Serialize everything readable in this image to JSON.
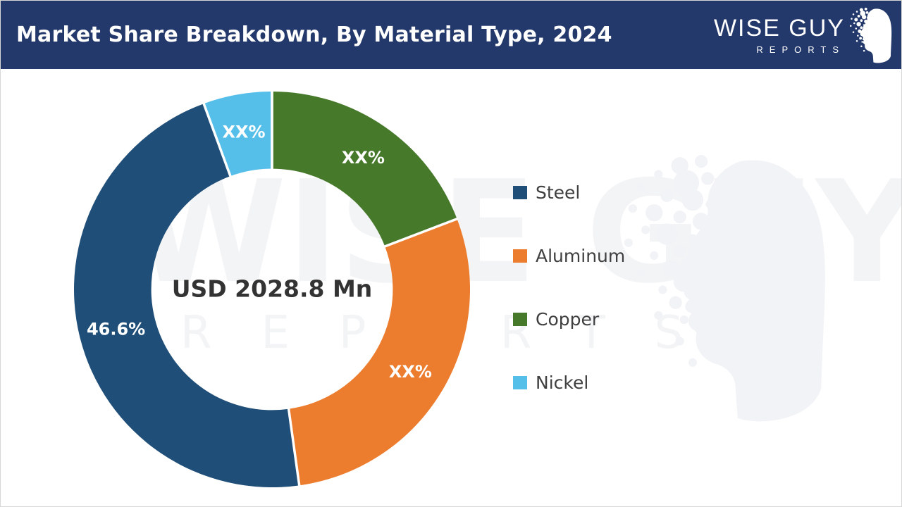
{
  "header": {
    "title": "Market Share Breakdown, By Material Type, 2024",
    "logo": {
      "brand": "WISE GUY",
      "tagline": "REPORTS"
    }
  },
  "watermark": {
    "brand": "WISE GUY",
    "tagline": "REPORTS"
  },
  "chart_data": {
    "type": "donut",
    "title": "Market Share Breakdown, By Material Type, 2024",
    "center_label": "USD 2028.8 Mn",
    "segments": [
      {
        "label": "Steel",
        "value": 46.6,
        "display": "46.6%",
        "color": "#1f4e78"
      },
      {
        "label": "Aluminum",
        "value": 28.6,
        "display": "XX%",
        "color": "#ec7d2f"
      },
      {
        "label": "Copper",
        "value": 19.2,
        "display": "XX%",
        "color": "#47792b"
      },
      {
        "label": "Nickel",
        "value": 5.6,
        "display": "XX%",
        "color": "#55bfe9"
      }
    ],
    "draw_order_clockwise_from_top": [
      "Copper",
      "Aluminum",
      "Steel",
      "Nickel"
    ],
    "inner_radius_ratio": 0.61,
    "legend_position": "right",
    "label_color": "#ffffff",
    "divider_color": "#ffffff"
  }
}
